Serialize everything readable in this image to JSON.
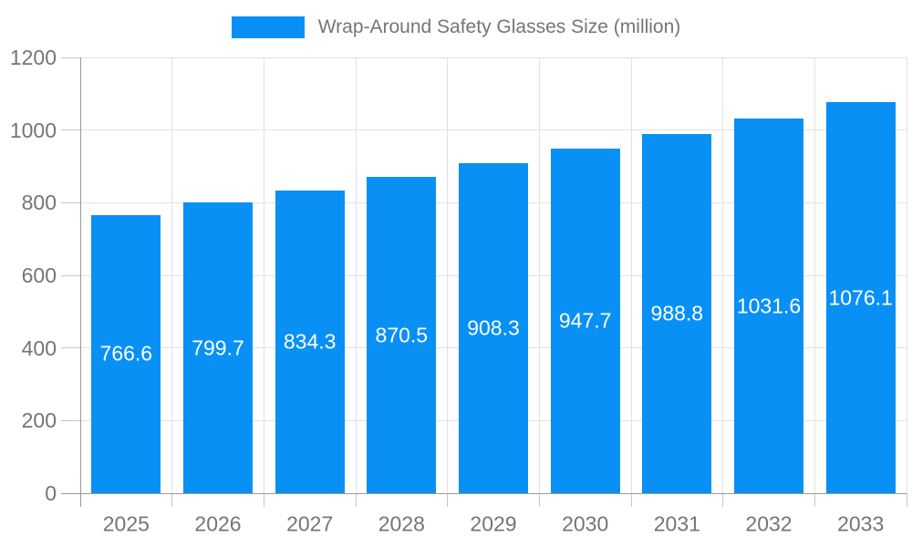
{
  "legend": {
    "label": "Wrap-Around Safety Glasses Size (million)"
  },
  "chart_data": {
    "type": "bar",
    "title": "Wrap-Around Safety Glasses Size (million)",
    "categories": [
      "2025",
      "2026",
      "2027",
      "2028",
      "2029",
      "2030",
      "2031",
      "2032",
      "2033"
    ],
    "series": [
      {
        "name": "Wrap-Around Safety Glasses Size (million)",
        "values": [
          766.6,
          799.7,
          834.3,
          870.5,
          908.3,
          947.7,
          988.8,
          1031.6,
          1076.1
        ]
      }
    ],
    "value_labels": [
      "766.6",
      "799.7",
      "834.3",
      "870.5",
      "908.3",
      "947.7",
      "988.8",
      "1031.6",
      "1076.1"
    ],
    "xlabel": "",
    "ylabel": "",
    "ylim": [
      0,
      1200
    ],
    "ytick_step": 200,
    "ytick_labels": [
      "0",
      "200",
      "400",
      "600",
      "800",
      "1000",
      "1200"
    ],
    "grid": "on",
    "legend_position": "top",
    "colors": {
      "bar": "#0990f5",
      "grid": "#e2e2e2",
      "axis": "#9a9a9a",
      "tick": "#c6c6c6",
      "tick_text": "#757575",
      "legend_text": "#757575",
      "value_label": "#ffffff",
      "background": "#ffffff"
    }
  }
}
